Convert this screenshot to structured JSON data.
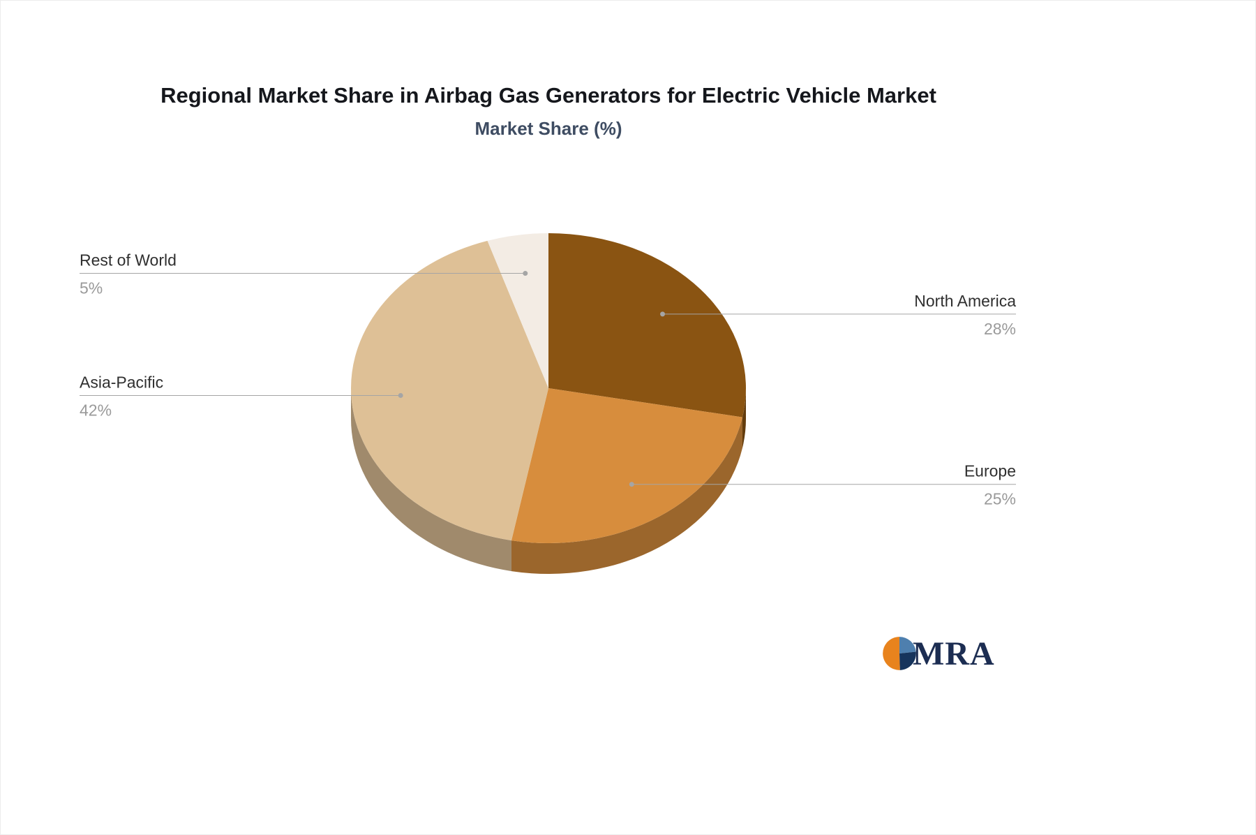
{
  "header": {
    "title": "Regional Market Share in Airbag Gas Generators for Electric Vehicle Market",
    "subtitle": "Market Share (%)"
  },
  "chart_data": {
    "type": "pie",
    "style": "3d",
    "title": "Regional Market Share in Airbag Gas Generators for Electric Vehicle Market",
    "subtitle": "Market Share (%)",
    "unit": "%",
    "start_angle_deg": 0,
    "direction": "clockwise",
    "legend": "none",
    "categories": [
      "North America",
      "Europe",
      "Asia-Pacific",
      "Rest of World"
    ],
    "values": [
      28,
      25,
      42,
      5
    ],
    "labels": [
      "28%",
      "25%",
      "42%",
      "5%"
    ],
    "colors": [
      "#8a5412",
      "#d78d3d",
      "#dec096",
      "#f3ece4"
    ],
    "label_name_color": "#2f2f2f",
    "label_value_color": "#9a9a9a",
    "leader_line_color": "#a5a5a5"
  },
  "logo": {
    "text": "MRA",
    "text_color": "#1c2d52",
    "icon": "pie-logo-icon",
    "icon_segments": [
      {
        "color": "#e8831d",
        "from": 178,
        "to": 360
      },
      {
        "color": "#4e7fae",
        "from": 0,
        "to": 84
      },
      {
        "color": "#16345c",
        "from": 84,
        "to": 178
      }
    ]
  }
}
